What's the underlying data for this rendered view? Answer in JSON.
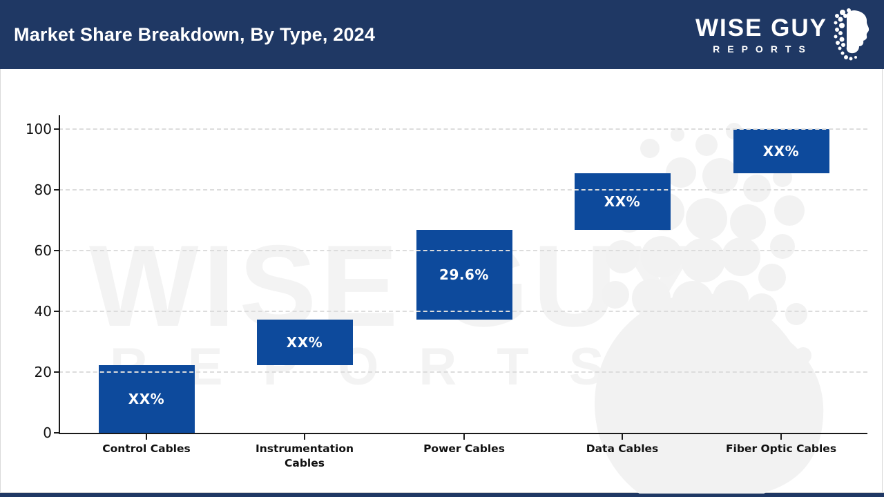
{
  "header": {
    "title": "Market Share Breakdown, By Type, 2024",
    "logo": {
      "line1": "WISE GUY",
      "line2": "REPORTS",
      "head_icon": "dotted-face-profile-icon"
    }
  },
  "watermark": {
    "line1": "WISE GUY",
    "line2": "REPORTS",
    "head_icon": "dotted-face-profile-watermark"
  },
  "colors": {
    "header_bg": "#1f3864",
    "bar_fill": "#0d4a9c",
    "bar_label_text": "#ffffff",
    "gridline": "#dcdcdc",
    "axis": "#1a1a1a",
    "watermark": "#f3f3f3",
    "footer_bar": "#1f3864"
  },
  "chart_data": {
    "type": "bar",
    "variant": "floating-stacked-breakdown",
    "title": "Market Share Breakdown, By Type, 2024",
    "xlabel": "",
    "ylabel": "",
    "categories": [
      "Control Cables",
      "Instrumentation Cables",
      "Power Cables",
      "Data Cables",
      "Fiber Optic Cables"
    ],
    "segments": [
      {
        "category": "Control Cables",
        "from": 0,
        "to": 22.3,
        "label": "XX%"
      },
      {
        "category": "Instrumentation Cables",
        "from": 22.3,
        "to": 37.2,
        "label": "XX%"
      },
      {
        "category": "Power Cables",
        "from": 37.2,
        "to": 66.8,
        "label": "29.6%"
      },
      {
        "category": "Data Cables",
        "from": 66.8,
        "to": 85.4,
        "label": "XX%"
      },
      {
        "category": "Fiber Optic Cables",
        "from": 85.4,
        "to": 100,
        "label": "XX%"
      }
    ],
    "yticks": [
      0,
      20,
      40,
      60,
      80,
      100
    ],
    "ylim": [
      0,
      105
    ],
    "grid": "horizontal-dashed-over-bars",
    "legend": "none"
  }
}
